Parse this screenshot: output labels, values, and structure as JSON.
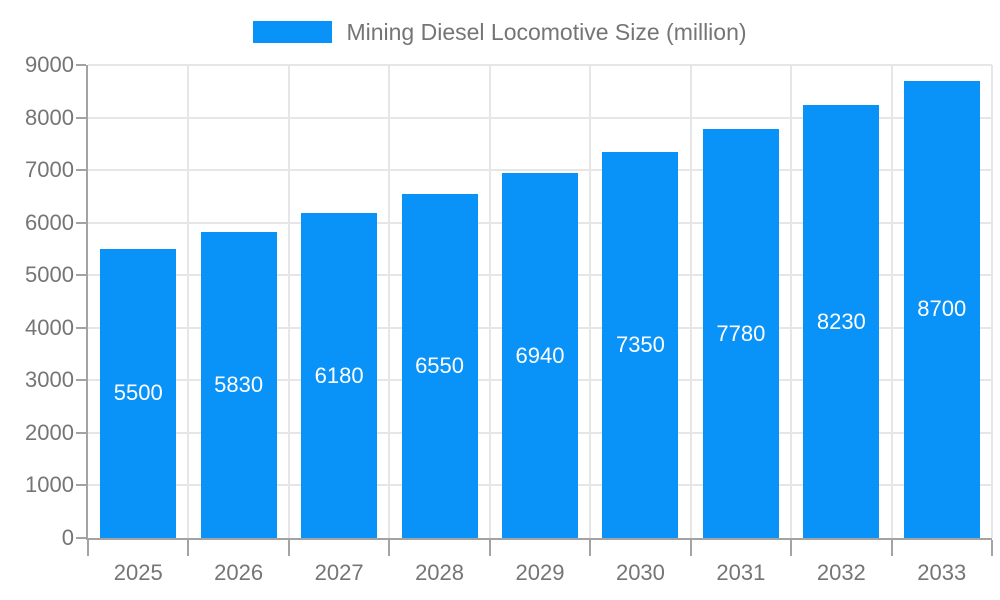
{
  "chart_data": {
    "type": "bar",
    "title": "Mining Diesel Locomotive Size (million)",
    "categories": [
      "2025",
      "2026",
      "2027",
      "2028",
      "2029",
      "2030",
      "2031",
      "2032",
      "2033"
    ],
    "values": [
      5500,
      5830,
      6180,
      6550,
      6940,
      7350,
      7780,
      8230,
      8700
    ],
    "value_labels": [
      "5500",
      "5830",
      "6180",
      "6550",
      "6940",
      "7350",
      "7780",
      "8230",
      "8700"
    ],
    "xlabel": "",
    "ylabel": "",
    "ylim": [
      0,
      9000
    ],
    "ytick_step": 1000,
    "ytick_labels": [
      "0",
      "1000",
      "2000",
      "3000",
      "4000",
      "5000",
      "6000",
      "7000",
      "8000",
      "9000"
    ],
    "grid": true,
    "legend_position": "top",
    "colors": {
      "bar": "#0992f8",
      "grid": "#e6e6e6",
      "axis": "#a3a3a3",
      "axis_text": "#757575",
      "legend_text": "#757575",
      "value_text": "#ffffff",
      "background": "#ffffff"
    }
  }
}
